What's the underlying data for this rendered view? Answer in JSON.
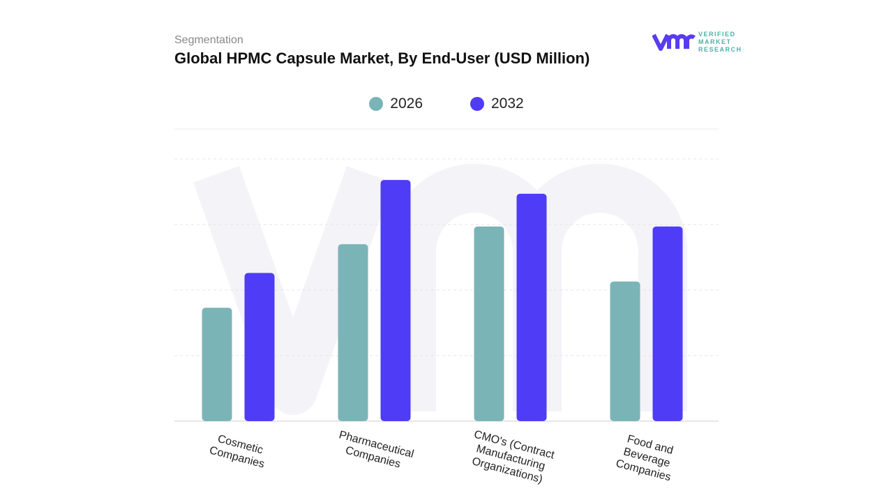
{
  "header": {
    "segment_label": "Segmentation",
    "title": "Global HPMC Capsule Market, By End-User (USD Million)"
  },
  "logo": {
    "text_line1": "VERIFIED",
    "text_line2": "MARKET",
    "text_line3": "RESEARCH"
  },
  "colors": {
    "series_2026": "#7ab4b7",
    "series_2032": "#4f3cf6"
  },
  "chart_data": {
    "type": "bar",
    "title": "Global HPMC Capsule Market, By End-User (USD Million)",
    "categories": [
      "Cosmetic Companies",
      "Pharmaceutical Companies",
      "CMO's (Contract Manufacturing Organizations)",
      "Food and Beverage Companies"
    ],
    "series": [
      {
        "name": "2026",
        "values": [
          1.73,
          2.7,
          2.97,
          2.13
        ]
      },
      {
        "name": "2032",
        "values": [
          2.26,
          3.68,
          3.47,
          2.97
        ]
      }
    ],
    "ylim": [
      0,
      4
    ],
    "grid": true,
    "legend": "top-center",
    "xlabel": "",
    "ylabel": ""
  }
}
